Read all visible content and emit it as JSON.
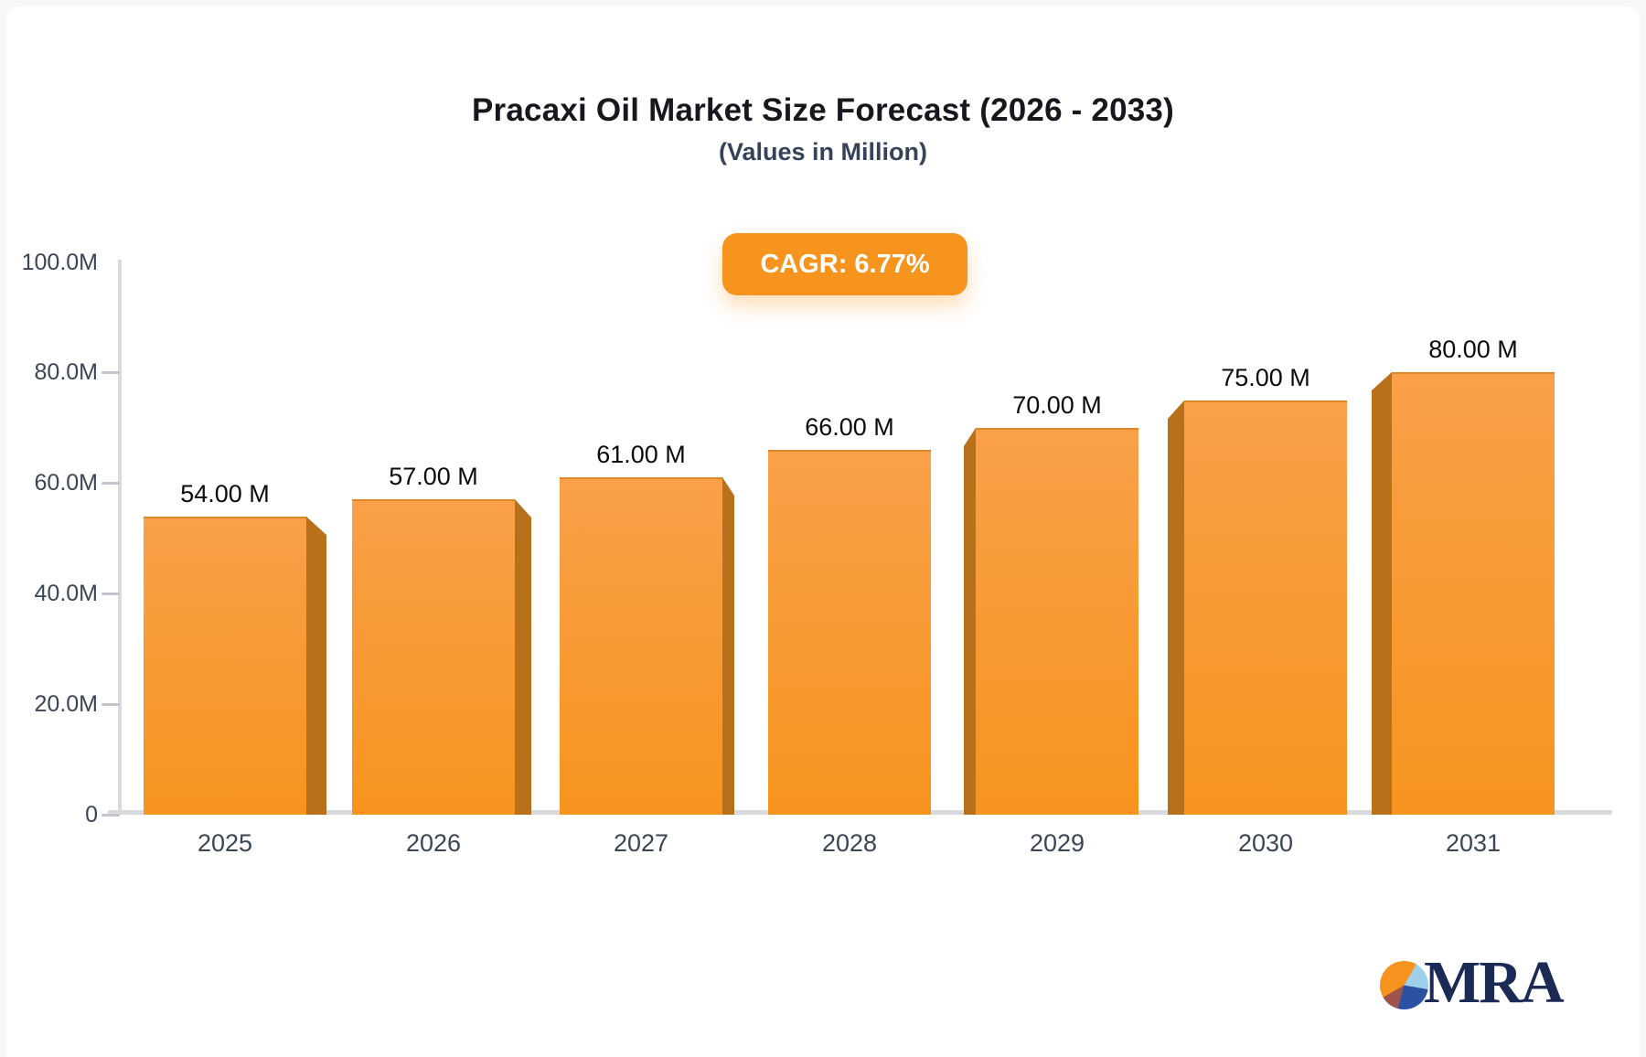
{
  "header": {
    "title": "Pracaxi Oil Market Size Forecast (2026 - 2033)",
    "subtitle": "(Values in Million)"
  },
  "badge": {
    "label": "CAGR: 6.77%"
  },
  "chart_data": {
    "type": "bar",
    "title": "Pracaxi Oil Market Size Forecast (2026 - 2033)",
    "subtitle": "(Values in Million)",
    "categories": [
      "2025",
      "2026",
      "2027",
      "2028",
      "2029",
      "2030",
      "2031"
    ],
    "values": [
      54,
      57,
      61,
      66,
      70,
      75,
      80
    ],
    "value_labels": [
      "54.00 M",
      "57.00 M",
      "61.00 M",
      "66.00 M",
      "70.00 M",
      "75.00 M",
      "80.00 M"
    ],
    "xlabel": "",
    "ylabel": "",
    "ylim": [
      0,
      100
    ],
    "y_ticks": [
      {
        "label": "100.0M",
        "value": 100
      },
      {
        "label": "80.0M",
        "value": 80
      },
      {
        "label": "60.0M",
        "value": 60
      },
      {
        "label": "40.0M",
        "value": 40
      },
      {
        "label": "20.0M",
        "value": 20
      },
      {
        "label": "0",
        "value": 0
      }
    ],
    "grid": false,
    "legend": false,
    "annotations": [
      "CAGR: 6.77%"
    ]
  },
  "colors": {
    "accent": "#F7941E",
    "bar_face_top": "#F9A049",
    "bar_face_bottom": "#F7941E",
    "bar_top_edge": "#DE8727",
    "bar_side": "#B8701B",
    "axis_line": "#D9DADE",
    "tick_mark": "#C2C6CC",
    "axis_label": "#3A4656",
    "value_label": "#0B0B0B",
    "title": "#16181D",
    "subtitle": "#36425A"
  },
  "logo": {
    "text": "MRA",
    "text_color": "#1B2A55",
    "pie_slices": [
      {
        "name": "orange",
        "color": "#F6921E"
      },
      {
        "name": "light-blue",
        "color": "#9FD0EB"
      },
      {
        "name": "dark-blue",
        "color": "#2B51A3"
      },
      {
        "name": "maroon",
        "color": "#9C544B"
      }
    ]
  }
}
